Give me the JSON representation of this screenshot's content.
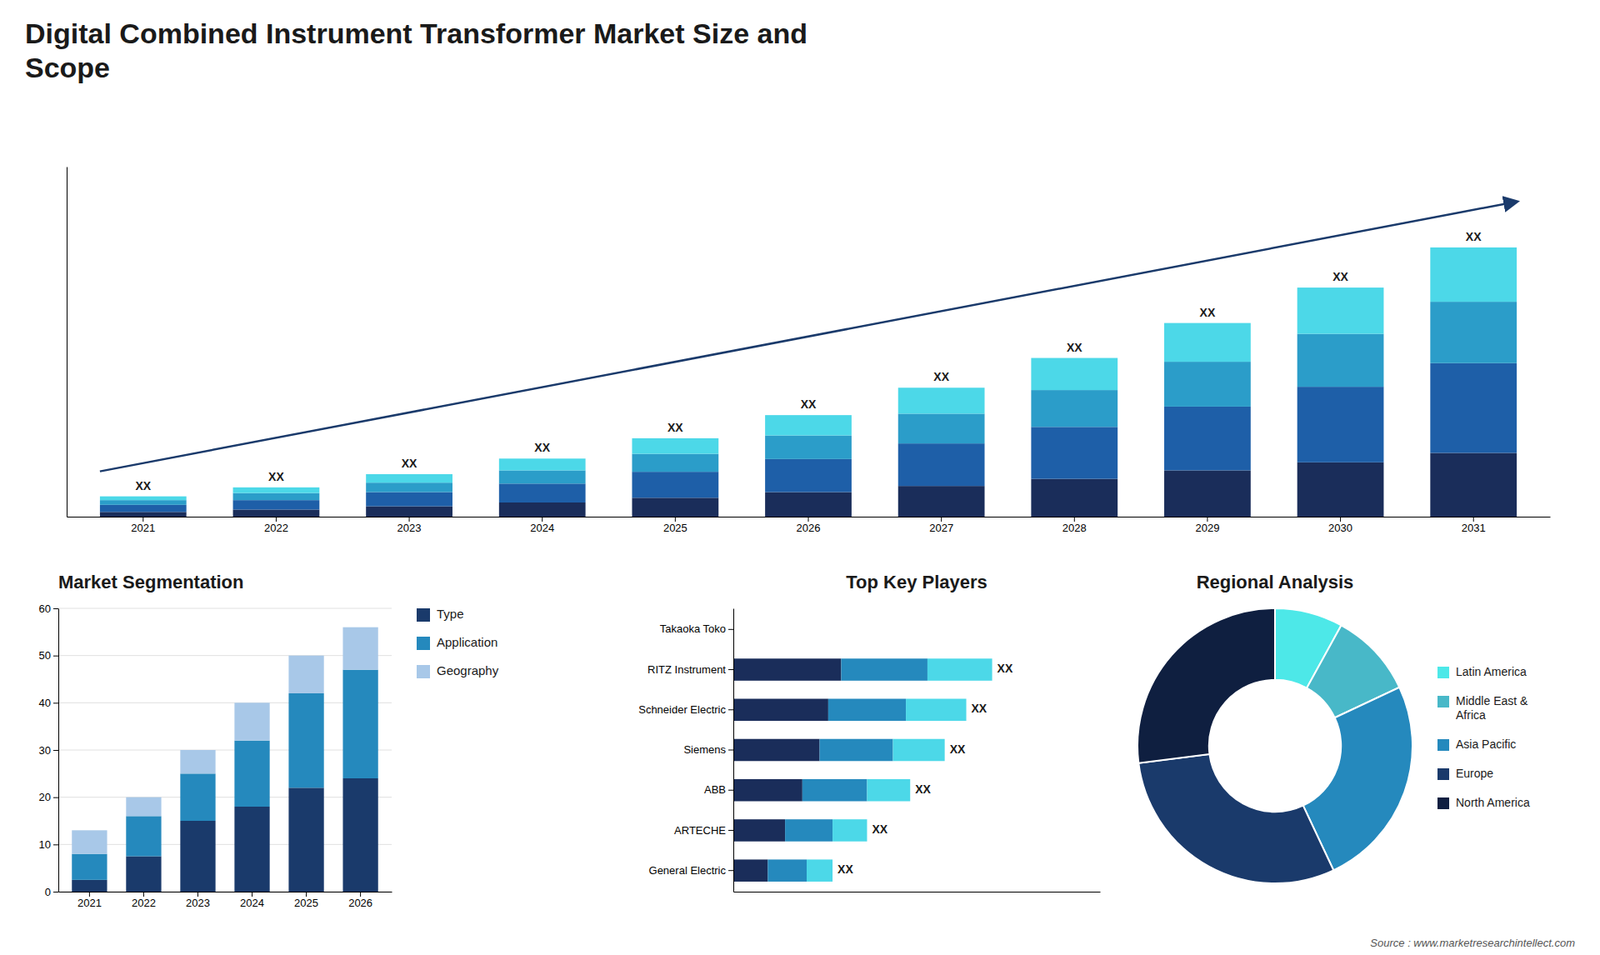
{
  "chart_data": [
    {
      "type": "bar",
      "title": "Digital Combined Instrument Transformer Market Size and\nScope",
      "stacked": true,
      "categories": [
        "2021",
        "2022",
        "2023",
        "2024",
        "2025",
        "2026",
        "2027",
        "2028",
        "2029",
        "2030",
        "2031"
      ],
      "series": [
        {
          "color": "#1a2d5a",
          "values": [
            1.0,
            1.5,
            2.2,
            3.0,
            4.0,
            5.2,
            6.5,
            8.0,
            9.8,
            11.5,
            13.5
          ]
        },
        {
          "color": "#1e5fa8",
          "values": [
            1.5,
            2.0,
            3.0,
            4.0,
            5.5,
            7.0,
            9.0,
            11.0,
            13.5,
            16.0,
            19.0
          ]
        },
        {
          "color": "#2b9dc9",
          "values": [
            1.0,
            1.5,
            2.0,
            2.8,
            3.8,
            5.0,
            6.3,
            7.8,
            9.5,
            11.2,
            13.0
          ]
        },
        {
          "color": "#4cd8e8",
          "values": [
            0.8,
            1.2,
            1.8,
            2.5,
            3.3,
            4.3,
            5.5,
            6.8,
            8.2,
            9.8,
            11.5
          ]
        }
      ],
      "ylim": [
        0,
        74.1
      ],
      "tick_labels": "x",
      "annotations": [
        "XX",
        "XX",
        "XX",
        "XX",
        "XX",
        "XX",
        "XX",
        "XX",
        "XX",
        "XX",
        "XX"
      ]
    },
    {
      "type": "bar",
      "title": "Market Segmentation",
      "stacked": true,
      "categories": [
        "2021",
        "2022",
        "2023",
        "2024",
        "2025",
        "2026"
      ],
      "series": [
        {
          "name": "Type",
          "color": "#1a3a6b",
          "values": [
            2.5,
            7.5,
            15.0,
            18.0,
            22.0,
            24.0
          ]
        },
        {
          "name": "Application",
          "color": "#2589bd",
          "values": [
            5.5,
            8.5,
            10.0,
            14.0,
            20.0,
            23.0
          ]
        },
        {
          "name": "Geography",
          "color": "#a8c8e8",
          "values": [
            5.0,
            4.0,
            5.0,
            8.0,
            8.0,
            9.0
          ]
        }
      ],
      "ylim": [
        0,
        60
      ],
      "yticks": [
        0,
        10,
        20,
        30,
        40,
        50,
        60
      ],
      "grid": true,
      "legend": "right"
    },
    {
      "type": "bar",
      "title": "Top Key Players",
      "orientation": "horizontal",
      "stacked": true,
      "categories": [
        "Takaoka Toko",
        "RITZ Instrument",
        "Schneider Electric",
        "Siemens",
        "ABB",
        "ARTECHE",
        "General Electric"
      ],
      "series": [
        {
          "color": "#1a2d5a",
          "values": [
            0,
            2.5,
            2.2,
            2.0,
            1.6,
            1.2,
            0.8
          ]
        },
        {
          "color": "#2589bd",
          "values": [
            0,
            2.0,
            1.8,
            1.7,
            1.5,
            1.1,
            0.9
          ]
        },
        {
          "color": "#4cd8e8",
          "values": [
            0,
            1.5,
            1.4,
            1.2,
            1.0,
            0.8,
            0.6
          ]
        }
      ],
      "xlim": [
        0,
        8.5
      ],
      "tick_labels": "y",
      "annotations": [
        null,
        "XX",
        "XX",
        "XX",
        "XX",
        "XX",
        "XX"
      ]
    },
    {
      "type": "pie",
      "title": "Regional Analysis",
      "categories": [
        "Latin America",
        "Middle East &\nAfrica",
        "Asia Pacific",
        "Europe",
        "North America"
      ],
      "values": [
        8,
        10,
        25,
        30,
        27
      ],
      "colors": [
        "#4de8e8",
        "#48b8c8",
        "#2589bd",
        "#1a3a6b",
        "#0f1f40"
      ],
      "legend": "right",
      "annotations": [
        "Source : www.marketresearchintellect.com"
      ]
    }
  ]
}
